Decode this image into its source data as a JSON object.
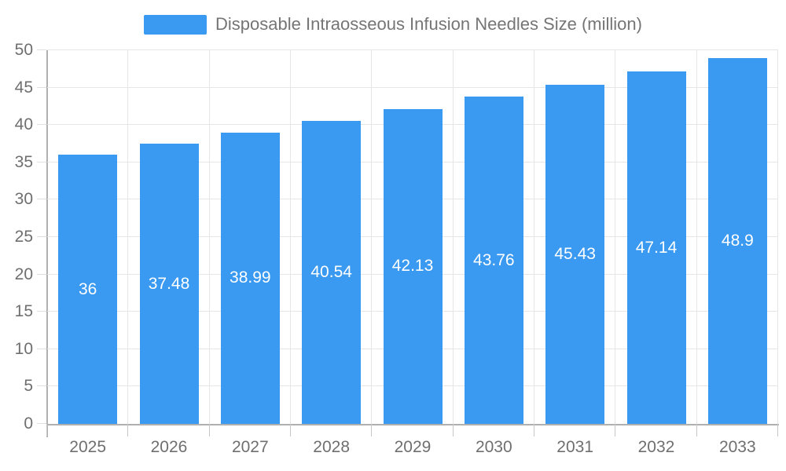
{
  "legend": {
    "label": "Disposable Intraosseous Infusion Needles Size (million)"
  },
  "chart_data": {
    "type": "bar",
    "title": "Disposable Intraosseous Infusion Needles Size (million)",
    "categories": [
      "2025",
      "2026",
      "2027",
      "2028",
      "2029",
      "2030",
      "2031",
      "2032",
      "2033"
    ],
    "values": [
      36,
      37.48,
      38.99,
      40.54,
      42.13,
      43.76,
      45.43,
      47.14,
      48.9
    ],
    "value_labels": [
      "36",
      "37.48",
      "38.99",
      "40.54",
      "42.13",
      "43.76",
      "45.43",
      "47.14",
      "48.9"
    ],
    "xlabel": "",
    "ylabel": "",
    "ylim": [
      0,
      50
    ],
    "ytick_step": 5,
    "ytick_labels": [
      "0",
      "5",
      "10",
      "15",
      "20",
      "25",
      "30",
      "35",
      "40",
      "45",
      "50"
    ],
    "grid": true,
    "legend_position": "top-center",
    "colors": {
      "bar": "#3A99F0",
      "grid": "#e6e6e6",
      "axis": "#b0b0b0",
      "y_tick": "#e0e0e0",
      "x_tick": "#c6c6c6",
      "axis_label": "#6f6f6f",
      "legend_text": "#757575",
      "value_label": "#ffffff",
      "background": "#ffffff"
    }
  }
}
